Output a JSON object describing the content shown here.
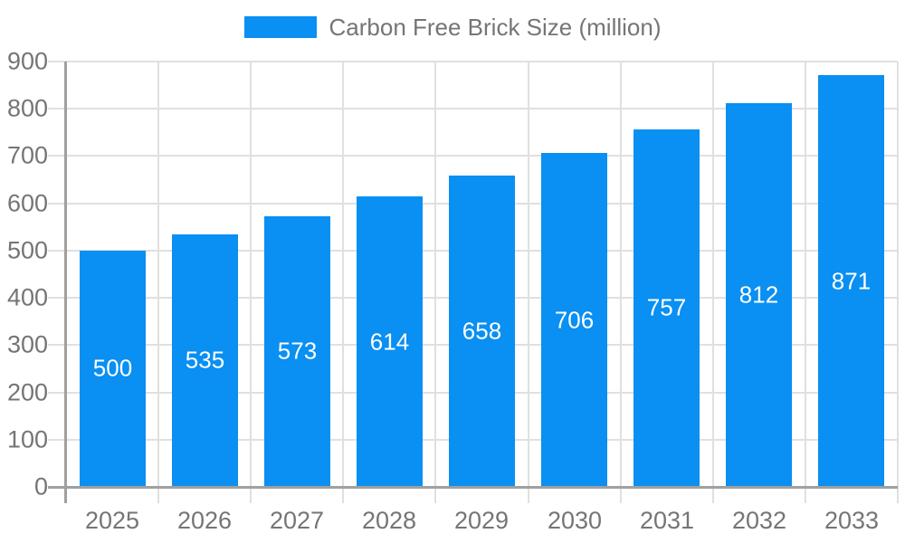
{
  "legend": {
    "label": "Carbon Free Brick Size (million)"
  },
  "chart_data": {
    "type": "bar",
    "title": "Carbon Free Brick Size (million)",
    "categories": [
      "2025",
      "2026",
      "2027",
      "2028",
      "2029",
      "2030",
      "2031",
      "2032",
      "2033"
    ],
    "values": [
      500,
      535,
      573,
      614,
      658,
      706,
      757,
      812,
      871
    ],
    "xlabel": "",
    "ylabel": "",
    "ylim": [
      0,
      900
    ],
    "ytick_step": 100,
    "grid": true,
    "legend_position": "top-center",
    "value_labels": "inside-center",
    "colors": {
      "bar": "#0a8ff2",
      "grid": "#e0e0e0",
      "axis": "#a0a0a0",
      "tick_text": "#757575",
      "value_text": "#ffffff",
      "background": "#ffffff"
    }
  }
}
